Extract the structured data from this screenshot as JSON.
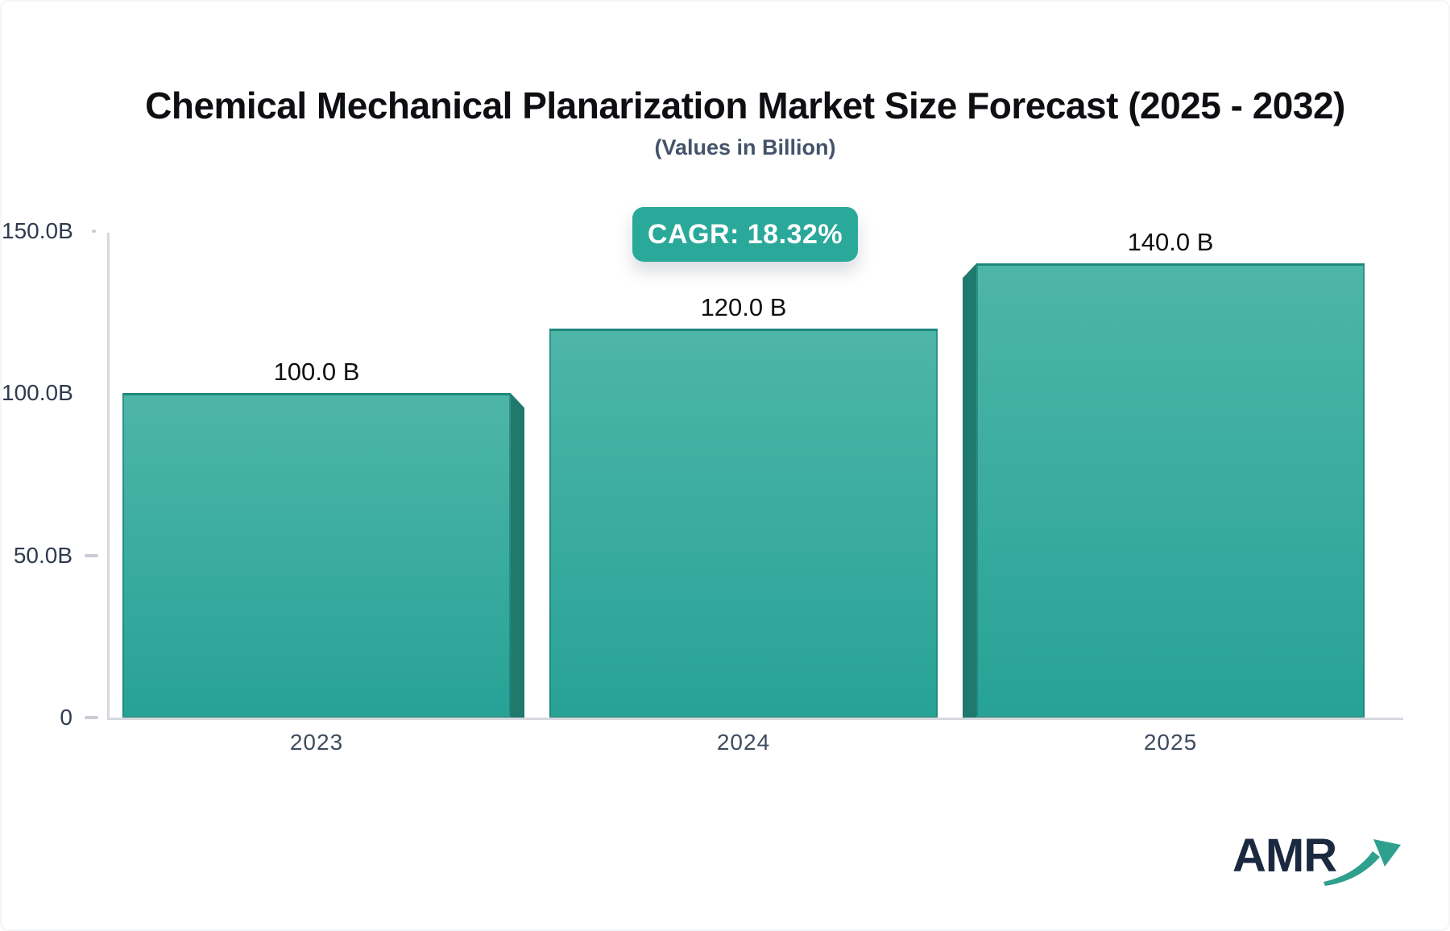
{
  "page": {
    "title": "Chemical Mechanical Planarization Market Size Forecast (2025 - 2032)",
    "subtitle": "(Values in Billion)"
  },
  "badge": {
    "label": "CAGR: 18.32%",
    "background_color": "#2aa99a",
    "text_color": "#ffffff"
  },
  "chart_data": {
    "type": "bar",
    "title": "Chemical Mechanical Planarization Market Size Forecast (2025 - 2032)",
    "subtitle": "(Values in Billion)",
    "categories": [
      "2023",
      "2024",
      "2025"
    ],
    "values": [
      100.0,
      120.0,
      140.0
    ],
    "value_labels": [
      "100.0 B",
      "120.0 B",
      "140.0 B"
    ],
    "cagr_label": "CAGR: 18.32%",
    "ylim": [
      0,
      150
    ],
    "yticks": [
      {
        "value": 150,
        "label": "150.0B",
        "mark": "dot"
      },
      {
        "value": 100,
        "label": "100.0B",
        "mark": "none"
      },
      {
        "value": 50,
        "label": "50.0B",
        "mark": "dash"
      },
      {
        "value": 0,
        "label": "0",
        "mark": "dash"
      }
    ],
    "grid": false,
    "legend": false,
    "bar_color_top": "#4eb5a9",
    "bar_color_bottom": "#27a296",
    "bar_side_color": "#20796d"
  },
  "logo": {
    "text": "AMR",
    "arrow_icon": "growth-arrow-icon",
    "text_color": "#1b2940",
    "arrow_color": "#2f9f8e"
  }
}
